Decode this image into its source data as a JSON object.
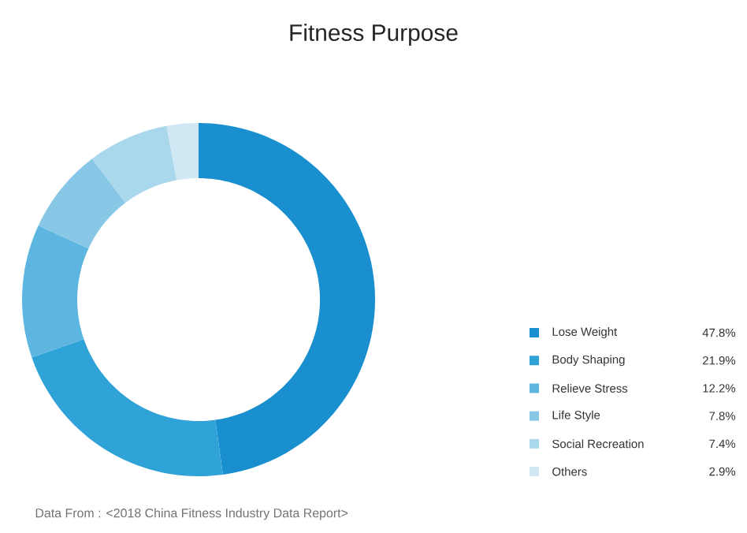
{
  "chart_data": {
    "type": "donut",
    "title": "Fitness Purpose",
    "categories": [
      "Lose Weight",
      "Body Shaping",
      "Relieve Stress",
      "Life Style",
      "Social Recreation",
      "Others"
    ],
    "values": [
      47.8,
      21.9,
      12.2,
      7.8,
      7.4,
      2.9
    ],
    "value_labels": [
      "47.8%",
      "21.9%",
      "12.2%",
      "7.8%",
      "7.4%",
      "2.9%"
    ],
    "colors": [
      "#1a8fd0",
      "#2fa2d8",
      "#5cb6e0",
      "#88c8e6",
      "#a9d7ec",
      "#cfe8f4"
    ],
    "legend": "right",
    "annotations": [
      "Data From : <2018 China Fitness Industry Data Report>"
    ]
  }
}
